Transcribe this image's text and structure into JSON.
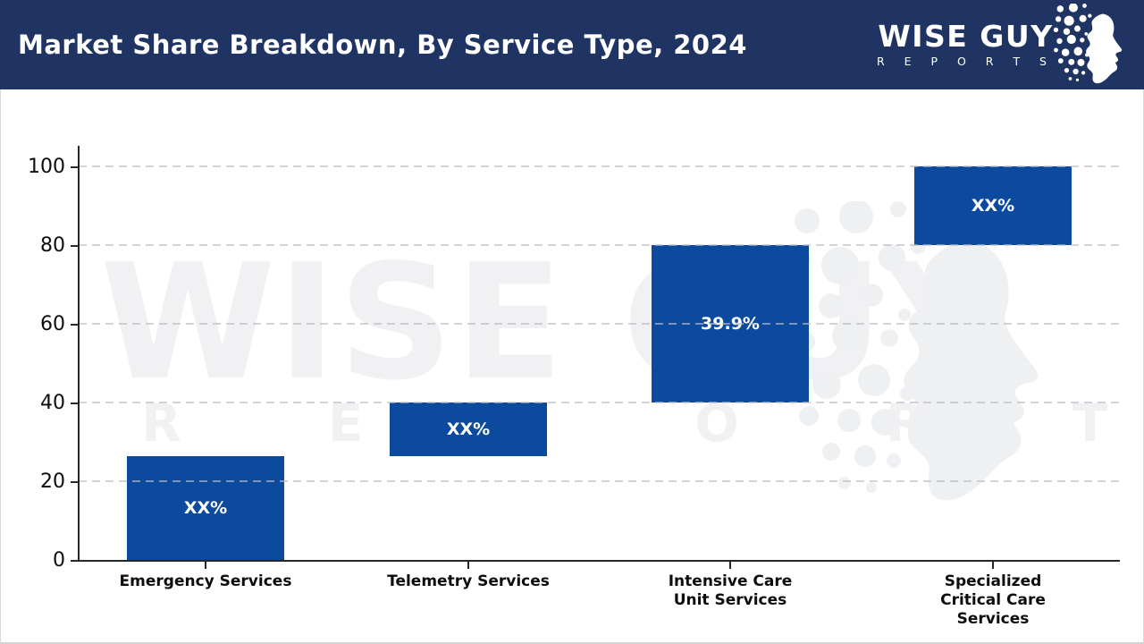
{
  "header": {
    "title": "Market Share Breakdown, By Service Type, 2024",
    "logo": {
      "name": "WISE GUY",
      "tagline": "R E P O R T S"
    },
    "bg_color": "#1f3462"
  },
  "watermark": {
    "big_text": "WISE GUY",
    "tagline": "R E P O R T S"
  },
  "chart_data": {
    "type": "bar",
    "variant": "floating-waterfall",
    "title": "Market Share Breakdown, By Service Type, 2024",
    "unit": "%",
    "ylim": [
      0,
      100
    ],
    "y_ticks": [
      0,
      20,
      40,
      60,
      80,
      100
    ],
    "grid": {
      "horizontal": true,
      "style": "dashed",
      "drawn_above_bars": true
    },
    "bar_color": "#0c4a9e",
    "value_label_color": "#ffffff",
    "bars": [
      {
        "category_lines": [
          "Emergency Services"
        ],
        "start": 0,
        "end": 26.3,
        "value_label": "XX%"
      },
      {
        "category_lines": [
          "Telemetry Services"
        ],
        "start": 26.3,
        "end": 40.1,
        "value_label": "XX%"
      },
      {
        "category_lines": [
          "Intensive Care",
          "Unit Services"
        ],
        "start": 40.1,
        "end": 80.0,
        "value_label": "39.9%"
      },
      {
        "category_lines": [
          "Specialized",
          "Critical Care",
          "Services"
        ],
        "start": 80.0,
        "end": 100.0,
        "value_label": "XX%"
      }
    ]
  }
}
